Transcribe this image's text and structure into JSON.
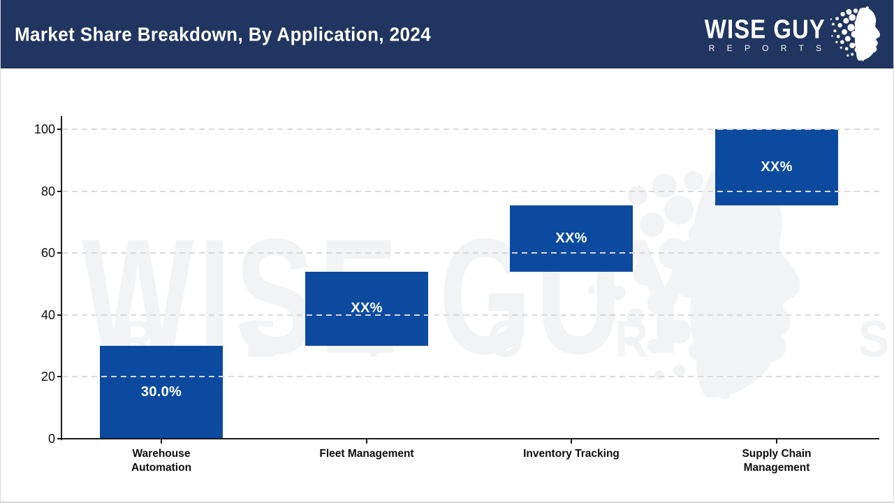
{
  "page": {
    "background": "#ffffff",
    "border_color": "#d6d6d6"
  },
  "header": {
    "bg_color": "#20355f",
    "title": "Market Share Breakdown, By Application, 2024",
    "logo": {
      "line1": "WISE GUY",
      "line2": "R E P O R T S",
      "head_icon": "dotted-head-profile"
    }
  },
  "watermark": {
    "line1": "WISE GUY",
    "line2": "R E P O R T S",
    "head_icon": "dotted-head-profile"
  },
  "chart_data": {
    "type": "bar",
    "subtype": "waterfall",
    "title": "Market Share Breakdown, By Application, 2024",
    "categories": [
      "Warehouse Automation",
      "Fleet Management",
      "Inventory Tracking",
      "Supply Chain Management"
    ],
    "category_lines": [
      [
        "Warehouse",
        "Automation"
      ],
      [
        "Fleet Management"
      ],
      [
        "Inventory Tracking"
      ],
      [
        "Supply Chain",
        "Management"
      ]
    ],
    "segments": [
      {
        "start": 0,
        "end": 30
      },
      {
        "start": 30,
        "end": 54
      },
      {
        "start": 54,
        "end": 75.5
      },
      {
        "start": 75.5,
        "end": 100
      }
    ],
    "values": [
      30.0,
      24.0,
      21.5,
      24.5
    ],
    "bar_labels": [
      "30.0%",
      "XX%",
      "XX%",
      "XX%"
    ],
    "yticks": [
      0,
      20,
      40,
      60,
      80,
      100
    ],
    "ylim": [
      0,
      105
    ],
    "xlabel": "",
    "ylabel": "",
    "grid": "horizontal-dashed",
    "legend": "none",
    "bar_color": "#0b4a9f",
    "bar_label_color": "#ffffff",
    "grid_color": "#d9d9d9",
    "axis_color": "#1a1a1a"
  }
}
